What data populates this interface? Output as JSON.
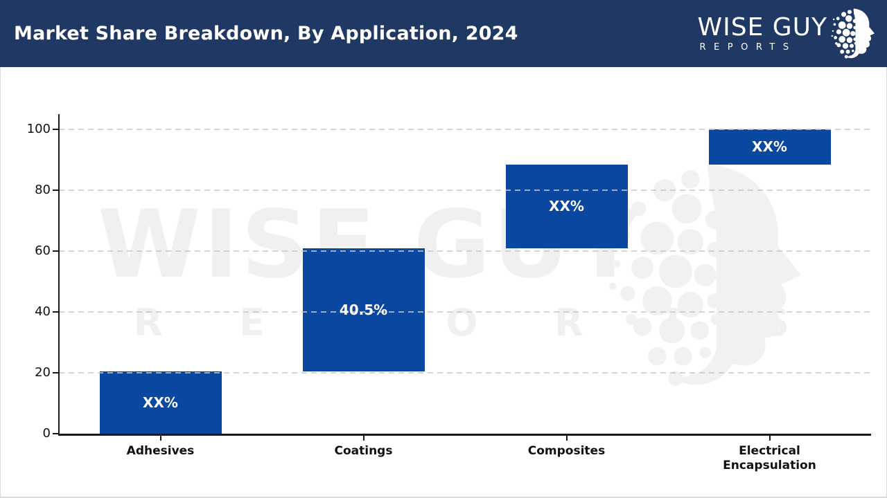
{
  "header": {
    "title": "Market Share Breakdown, By Application, 2024",
    "logo": {
      "line1": "WISE GUY",
      "line2": "REPORTS"
    }
  },
  "watermark": {
    "line1": "WISE GUY",
    "line2": "R E P O R T S"
  },
  "chart_data": {
    "type": "bar",
    "subtype": "floating-waterfall",
    "title": "Market Share Breakdown, By Application, 2024",
    "categories": [
      "Adhesives",
      "Coatings",
      "Composites",
      "Electrical Encapsulation"
    ],
    "segments": [
      {
        "category": "Adhesives",
        "start": 0,
        "end": 20.5,
        "label": "XX%"
      },
      {
        "category": "Coatings",
        "start": 20.5,
        "end": 61,
        "label": "40.5%"
      },
      {
        "category": "Composites",
        "start": 61,
        "end": 88.5,
        "label": "XX%"
      },
      {
        "category": "Electrical Encapsulation",
        "start": 88.5,
        "end": 100,
        "label": "XX%"
      }
    ],
    "ylim": [
      0,
      100
    ],
    "yticks": [
      0,
      20,
      40,
      60,
      80,
      100
    ],
    "grid": "horizontal-dashed-over-bars",
    "legend": "none",
    "bar_color": "#0a47a0",
    "value_label_color": "#ffffff",
    "axis_color": "#1a1a1a",
    "gridline_color": "#d3d3d3"
  },
  "colors": {
    "header_bg": "#1f3864",
    "canvas_bg": "#ffffff",
    "watermark": "#f0f0f0"
  }
}
